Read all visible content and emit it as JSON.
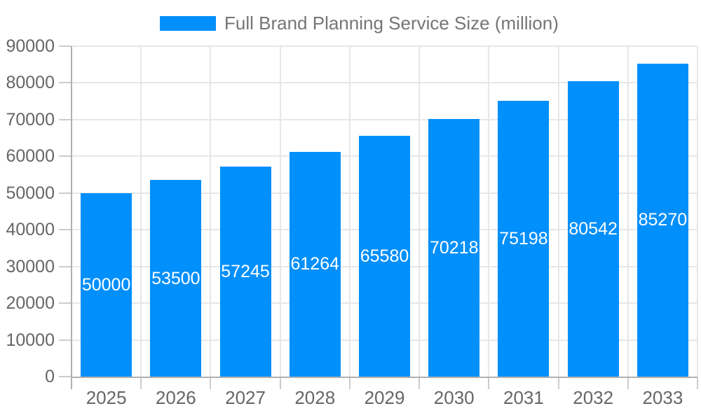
{
  "chart_data": {
    "type": "bar",
    "title": "",
    "legend_label": "Full Brand Planning Service Size (million)",
    "legend_position": "top",
    "categories": [
      "2025",
      "2026",
      "2027",
      "2028",
      "2029",
      "2030",
      "2031",
      "2032",
      "2033"
    ],
    "series": [
      {
        "name": "Full Brand Planning Service Size (million)",
        "values": [
          50000,
          53500,
          57245,
          61264,
          65580,
          70218,
          75198,
          80542,
          85270
        ]
      }
    ],
    "xlabel": "",
    "ylabel": "",
    "ylim": [
      0,
      90000
    ],
    "y_ticks": [
      0,
      10000,
      20000,
      30000,
      40000,
      50000,
      60000,
      70000,
      80000,
      90000
    ],
    "grid": true,
    "value_labels_position": "inside-center",
    "colors": {
      "bar": "#008FFB",
      "bar_label_text": "#FFFFFF",
      "axis_text": "#666666",
      "legend_text": "#757575",
      "gridline": "#E7E7E7",
      "axis_line": "#B0B0B0",
      "tick": "#CCCCCC",
      "background": "#FFFFFF"
    }
  }
}
